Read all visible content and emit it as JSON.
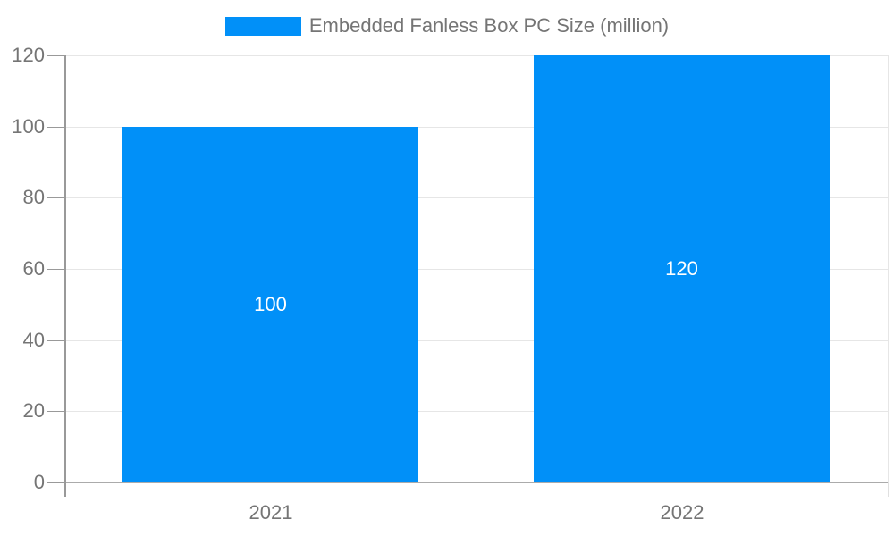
{
  "legend": {
    "label": "Embedded Fanless Box PC Size (million)"
  },
  "chart_data": {
    "type": "bar",
    "title": "",
    "series_name": "Embedded Fanless Box PC Size (million)",
    "categories": [
      "2021",
      "2022"
    ],
    "values": [
      100,
      120
    ],
    "data_labels": [
      "100",
      "120"
    ],
    "xlabel": "",
    "ylabel": "",
    "ylim": [
      0,
      120
    ],
    "yticks": [
      0,
      20,
      40,
      60,
      80,
      100,
      120
    ],
    "grid": true,
    "legend_position": "top-center",
    "colors": {
      "bar": "#0190f8",
      "text": "#757575",
      "data_label": "#ffffff",
      "gridline": "#e6e6e6",
      "x_axis_line": "#ababab",
      "y_axis_line": "#999999",
      "background": "#ffffff"
    }
  }
}
